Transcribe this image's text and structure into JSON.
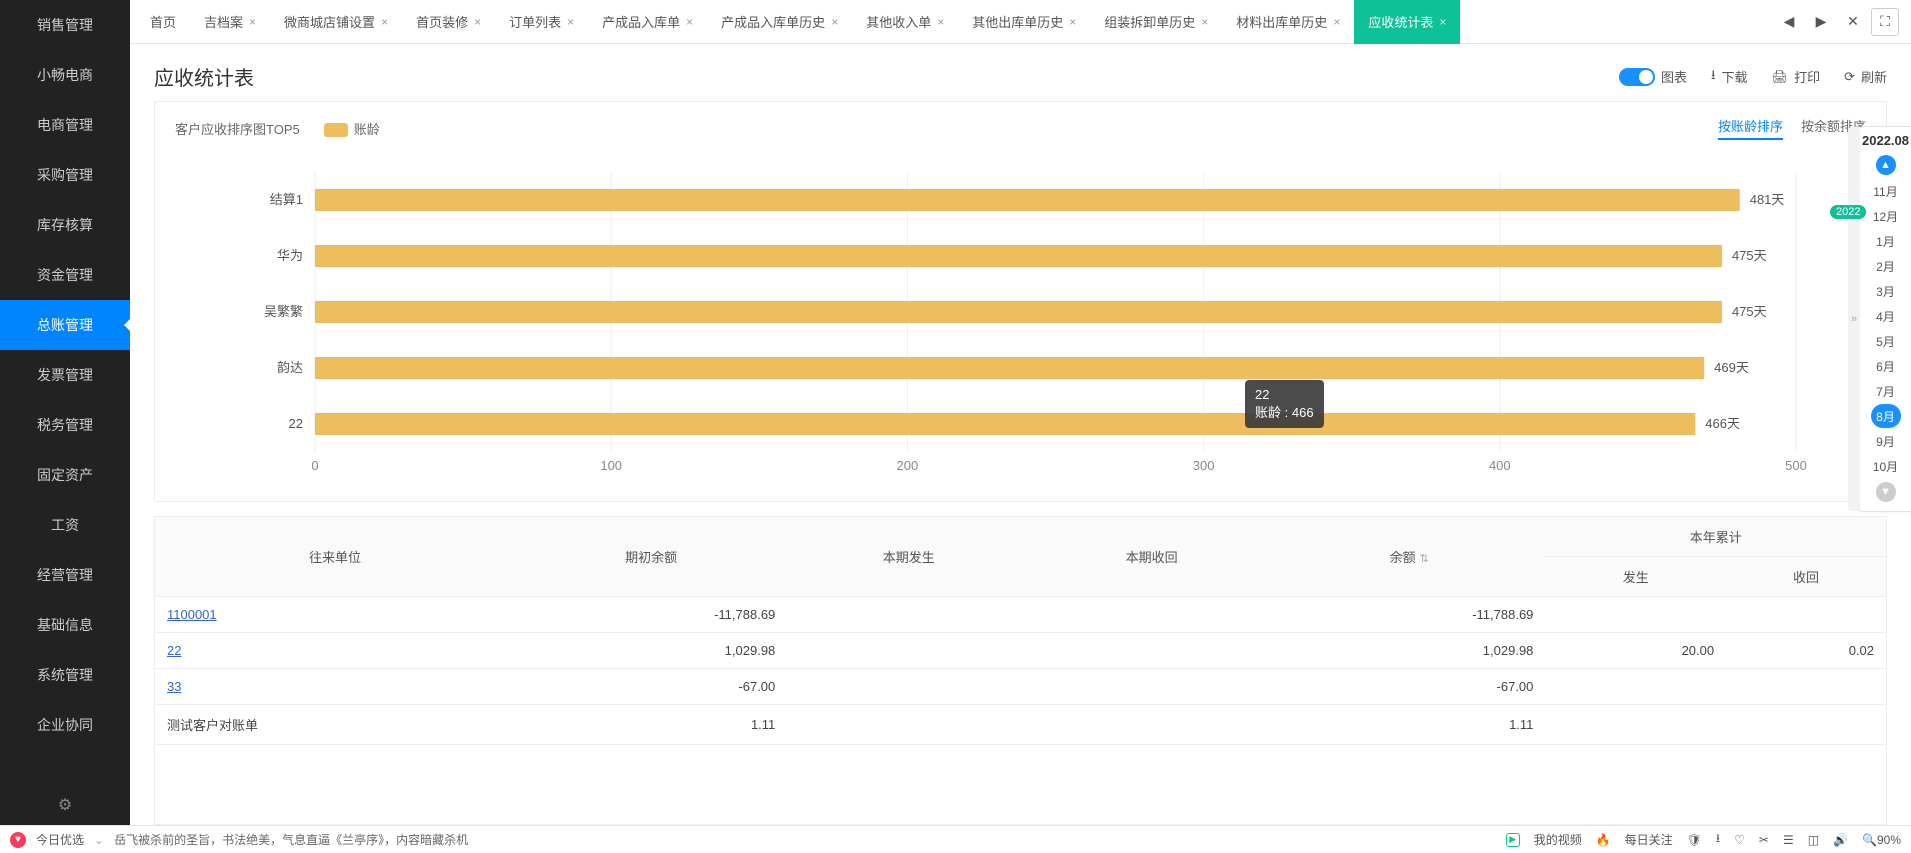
{
  "sidebar": {
    "items": [
      {
        "label": "销售管理"
      },
      {
        "label": "小畅电商"
      },
      {
        "label": "电商管理"
      },
      {
        "label": "采购管理"
      },
      {
        "label": "库存核算"
      },
      {
        "label": "资金管理"
      },
      {
        "label": "总账管理",
        "active": true
      },
      {
        "label": "发票管理"
      },
      {
        "label": "税务管理"
      },
      {
        "label": "固定资产"
      },
      {
        "label": "工资"
      },
      {
        "label": "经营管理"
      },
      {
        "label": "基础信息"
      },
      {
        "label": "系统管理"
      },
      {
        "label": "企业协同"
      }
    ]
  },
  "tabs": {
    "items": [
      {
        "label": "首页",
        "closable": false
      },
      {
        "label": "吉档案",
        "closable": true
      },
      {
        "label": "微商城店铺设置",
        "closable": true
      },
      {
        "label": "首页装修",
        "closable": true
      },
      {
        "label": "订单列表",
        "closable": true
      },
      {
        "label": "产成品入库单",
        "closable": true
      },
      {
        "label": "产成品入库单历史",
        "closable": true
      },
      {
        "label": "其他收入单",
        "closable": true
      },
      {
        "label": "其他出库单历史",
        "closable": true
      },
      {
        "label": "组装拆卸单历史",
        "closable": true
      },
      {
        "label": "材料出库单历史",
        "closable": true
      },
      {
        "label": "应收统计表",
        "closable": true,
        "active": true
      }
    ]
  },
  "page": {
    "title": "应收统计表",
    "toolbar": {
      "chart_label": "图表",
      "download": "下载",
      "print": "打印",
      "refresh": "刷新"
    }
  },
  "chart": {
    "type": "bar-horizontal",
    "title": "客户应收排序图TOP5",
    "legend_label": "账龄",
    "sort_options": [
      "按账龄排序",
      "按余额排序"
    ],
    "sort_active": 0,
    "bar_color": "#eebe5e",
    "grid_color": "#eeeeee",
    "label_color": "#555555",
    "axis_color": "#888888",
    "xlim": [
      0,
      500
    ],
    "xtick_step": 100,
    "xticks": [
      "0",
      "100",
      "200",
      "300",
      "400",
      "500"
    ],
    "categories": [
      "结算1",
      "华为",
      "吴繁繁",
      "韵达",
      "22"
    ],
    "values": [
      481,
      475,
      475,
      469,
      466
    ],
    "data_labels": [
      "481天",
      "475天",
      "475天",
      "469天",
      "466天"
    ],
    "tooltip": {
      "name": "22",
      "series": "账龄",
      "value": "466"
    }
  },
  "table": {
    "columns": {
      "unit": "往来单位",
      "opening": "期初余额",
      "period_occur": "本期发生",
      "period_recover": "本期收回",
      "balance": "余额",
      "year_total": "本年累计",
      "year_occur": "发生",
      "year_recover": "收回"
    },
    "rows": [
      {
        "unit": "1100001",
        "link": true,
        "opening": "-11,788.69",
        "period_occur": "",
        "period_recover": "",
        "balance": "-11,788.69",
        "year_occur": "",
        "year_recover": ""
      },
      {
        "unit": "22",
        "link": true,
        "opening": "1,029.98",
        "period_occur": "",
        "period_recover": "",
        "balance": "1,029.98",
        "year_occur": "20.00",
        "year_recover": "0.02"
      },
      {
        "unit": "33",
        "link": true,
        "opening": "-67.00",
        "period_occur": "",
        "period_recover": "",
        "balance": "-67.00",
        "year_occur": "",
        "year_recover": ""
      },
      {
        "unit": "测试客户对账单",
        "link": false,
        "opening": "1.11",
        "period_occur": "",
        "period_recover": "",
        "balance": "1.11",
        "year_occur": "",
        "year_recover": ""
      }
    ]
  },
  "date_sidebar": {
    "current": "2022.08",
    "year_badge": "2022",
    "months": [
      "11月",
      "12月",
      "1月",
      "2月",
      "3月",
      "4月",
      "5月",
      "6月",
      "7月",
      "8月",
      "9月",
      "10月"
    ],
    "active_index": 9
  },
  "status_bar": {
    "today_pick": "今日优选",
    "news": "岳飞被杀前的圣旨，书法绝美，气息直逼《兰亭序》，内容暗藏杀机",
    "my_video": "我的视频",
    "daily": "每日关注",
    "zoom": "90%"
  }
}
